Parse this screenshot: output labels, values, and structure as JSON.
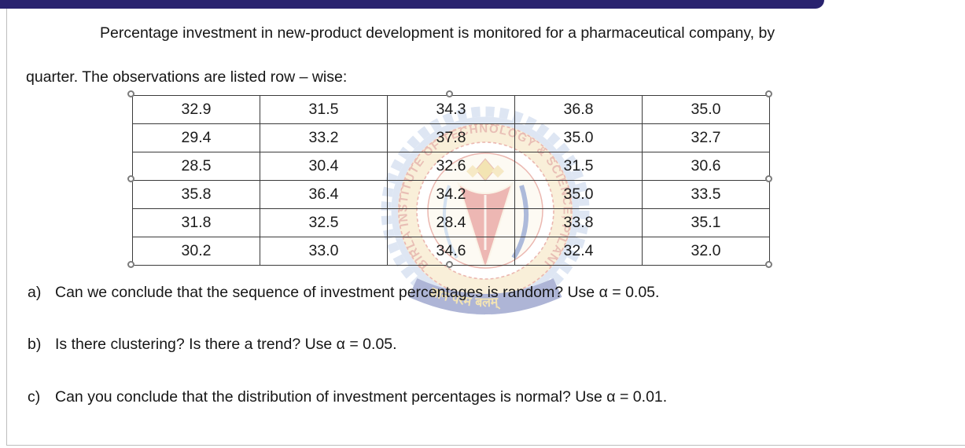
{
  "page": {
    "accent_bar_color": "#29226e"
  },
  "paragraph": {
    "line1": "Percentage investment in new-product development is monitored for a pharmaceutical company, by",
    "line2": "quarter. The observations are listed row – wise:"
  },
  "table": {
    "rows": [
      [
        "32.9",
        "31.5",
        "34.3",
        "36.8",
        "35.0"
      ],
      [
        "29.4",
        "33.2",
        "37.8",
        "35.0",
        "32.7"
      ],
      [
        "28.5",
        "30.4",
        "32.6",
        "31.5",
        "30.6"
      ],
      [
        "35.8",
        "36.4",
        "34.2",
        "35.0",
        "33.5"
      ],
      [
        "31.8",
        "32.5",
        "28.4",
        "33.8",
        "35.1"
      ],
      [
        "30.2",
        "33.0",
        "34.6",
        "32.4",
        "32.0"
      ]
    ]
  },
  "questions": [
    {
      "label": "a)",
      "text": "Can we conclude that the sequence of investment percentages is random? Use α = 0.05."
    },
    {
      "label": "b)",
      "text": "Is there clustering? Is there a trend? Use α = 0.05."
    },
    {
      "label": "c)",
      "text": "Can you conclude that the distribution of investment percentages is normal? Use α = 0.01."
    }
  ],
  "watermark": {
    "institute_ring_text": "BIRLA INSTITUTE OF TECHNOLOGY & SCIENCE, PILANI",
    "motto_text": "ज्ञान परम बलम्",
    "gear_color": "#a9c0e2",
    "ring_text_color": "#c4573f",
    "band_color": "#f0d79c",
    "emblem_red": "#d0453a",
    "banner_blue": "#2e3f95",
    "motto_gold": "#e2b93b"
  }
}
